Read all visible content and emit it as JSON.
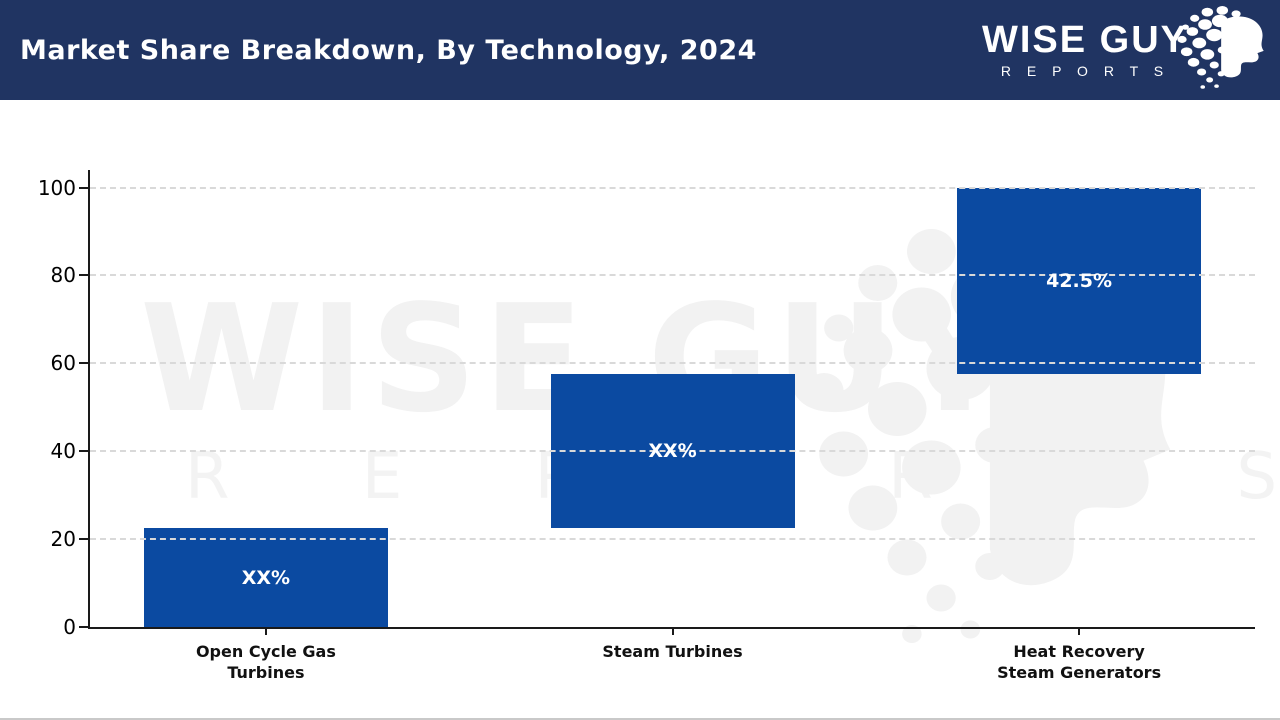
{
  "header": {
    "title": "Market Share Breakdown, By Technology, 2024",
    "bg_color": "#203462",
    "logo": {
      "line1": "WISE GUY",
      "line2": "R E P O R T S"
    }
  },
  "watermark": {
    "line1": "WISE GUY",
    "line2": "R E P O R T S"
  },
  "chart_data": {
    "type": "bar",
    "subtype": "floating-segment-bars (stacked range / waterfall style)",
    "title": "Market Share Breakdown, By Technology, 2024",
    "categories": [
      "Open Cycle Gas\nTurbines",
      "Steam Turbines",
      "Heat Recovery\nSteam Generators"
    ],
    "series": [
      {
        "name": "Open Cycle Gas Turbines",
        "start": 0,
        "end": 22.5,
        "value": 22.5,
        "label": "XX%"
      },
      {
        "name": "Steam Turbines",
        "start": 22.5,
        "end": 57.5,
        "value": 35,
        "label": "XX%"
      },
      {
        "name": "Heat Recovery Steam Generators",
        "start": 57.5,
        "end": 100,
        "value": 42.5,
        "label": "42.5%"
      }
    ],
    "xlabel": "",
    "ylabel": "",
    "yticks": [
      0,
      20,
      40,
      60,
      80,
      100
    ],
    "ylim": [
      0,
      104
    ],
    "grid": "horizontal dashed",
    "legend": "none",
    "bar_color": "#0b4aa1",
    "bar_label_color": "#ffffff",
    "axis_color": "#1a1a1a",
    "grid_color": "#d9d9d9"
  }
}
